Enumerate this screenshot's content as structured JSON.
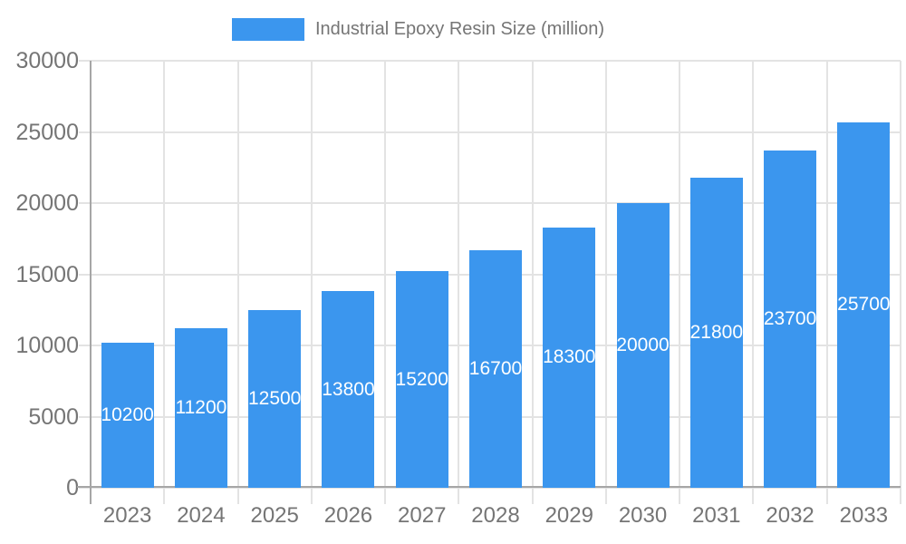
{
  "legend": {
    "label": "Industrial Epoxy Resin Size (million)"
  },
  "colors": {
    "bar": "#3B96EE",
    "axis_text": "#757575",
    "legend_text": "#757575",
    "gridline": "#E3E3E3",
    "axis_line": "#A6A6A6",
    "bar_label_text": "#FFFFFF",
    "background": "#FFFFFF"
  },
  "chart_data": {
    "type": "bar",
    "title": "",
    "legend_entries": [
      "Industrial Epoxy Resin Size (million)"
    ],
    "legend_position": "top",
    "categories": [
      "2023",
      "2024",
      "2025",
      "2026",
      "2027",
      "2028",
      "2029",
      "2030",
      "2031",
      "2032",
      "2033"
    ],
    "series": [
      {
        "name": "Industrial Epoxy Resin Size (million)",
        "values": [
          10200,
          11200,
          12500,
          13800,
          15200,
          16700,
          18300,
          20000,
          21800,
          23700,
          25700
        ]
      }
    ],
    "bar_labels_visible": true,
    "xlabel": "",
    "ylabel": "",
    "ylim": [
      0,
      30000
    ],
    "ytick_step": 5000,
    "ytick_labels": [
      "0",
      "5000",
      "10000",
      "15000",
      "20000",
      "25000",
      "30000"
    ],
    "grid": true
  }
}
